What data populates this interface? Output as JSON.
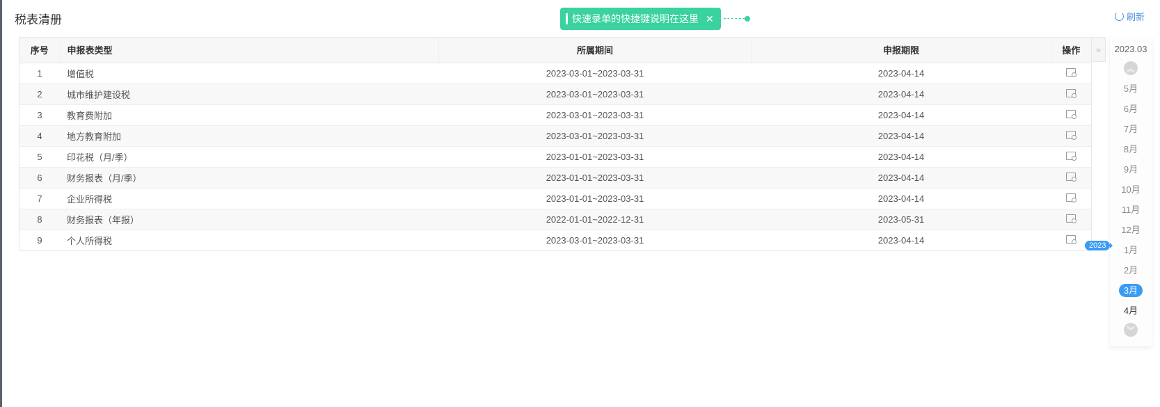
{
  "header": {
    "title": "税表清册",
    "tip_text": "快速录单的快捷键说明在这里",
    "refresh_label": "刷新"
  },
  "table": {
    "columns": {
      "seq": "序号",
      "type": "申报表类型",
      "period": "所属期间",
      "deadline": "申报期限",
      "op": "操作"
    },
    "rows": [
      {
        "seq": "1",
        "type": "增值税",
        "period": "2023-03-01~2023-03-31",
        "deadline": "2023-04-14"
      },
      {
        "seq": "2",
        "type": "城市维护建设税",
        "period": "2023-03-01~2023-03-31",
        "deadline": "2023-04-14"
      },
      {
        "seq": "3",
        "type": "教育费附加",
        "period": "2023-03-01~2023-03-31",
        "deadline": "2023-04-14"
      },
      {
        "seq": "4",
        "type": "地方教育附加",
        "period": "2023-03-01~2023-03-31",
        "deadline": "2023-04-14"
      },
      {
        "seq": "5",
        "type": "印花税（月/季）",
        "period": "2023-01-01~2023-03-31",
        "deadline": "2023-04-14"
      },
      {
        "seq": "6",
        "type": "财务报表（月/季）",
        "period": "2023-01-01~2023-03-31",
        "deadline": "2023-04-14"
      },
      {
        "seq": "7",
        "type": "企业所得税",
        "period": "2023-01-01~2023-03-31",
        "deadline": "2023-04-14"
      },
      {
        "seq": "8",
        "type": "财务报表（年报）",
        "period": "2022-01-01~2022-12-31",
        "deadline": "2023-05-31"
      },
      {
        "seq": "9",
        "type": "个人所得税",
        "period": "2023-03-01~2023-03-31",
        "deadline": "2023-04-14"
      }
    ]
  },
  "rail": {
    "current": "2023.03",
    "year_badge": "2023",
    "months": [
      {
        "label": "5月",
        "state": ""
      },
      {
        "label": "6月",
        "state": ""
      },
      {
        "label": "7月",
        "state": ""
      },
      {
        "label": "8月",
        "state": ""
      },
      {
        "label": "9月",
        "state": ""
      },
      {
        "label": "10月",
        "state": ""
      },
      {
        "label": "11月",
        "state": ""
      },
      {
        "label": "12月",
        "state": ""
      },
      {
        "label": "1月",
        "state": "year"
      },
      {
        "label": "2月",
        "state": ""
      },
      {
        "label": "3月",
        "state": "sel"
      },
      {
        "label": "4月",
        "state": "coming"
      }
    ]
  },
  "icons": {
    "expand": "»",
    "up": "︽",
    "down": "︾",
    "close": "✕"
  }
}
